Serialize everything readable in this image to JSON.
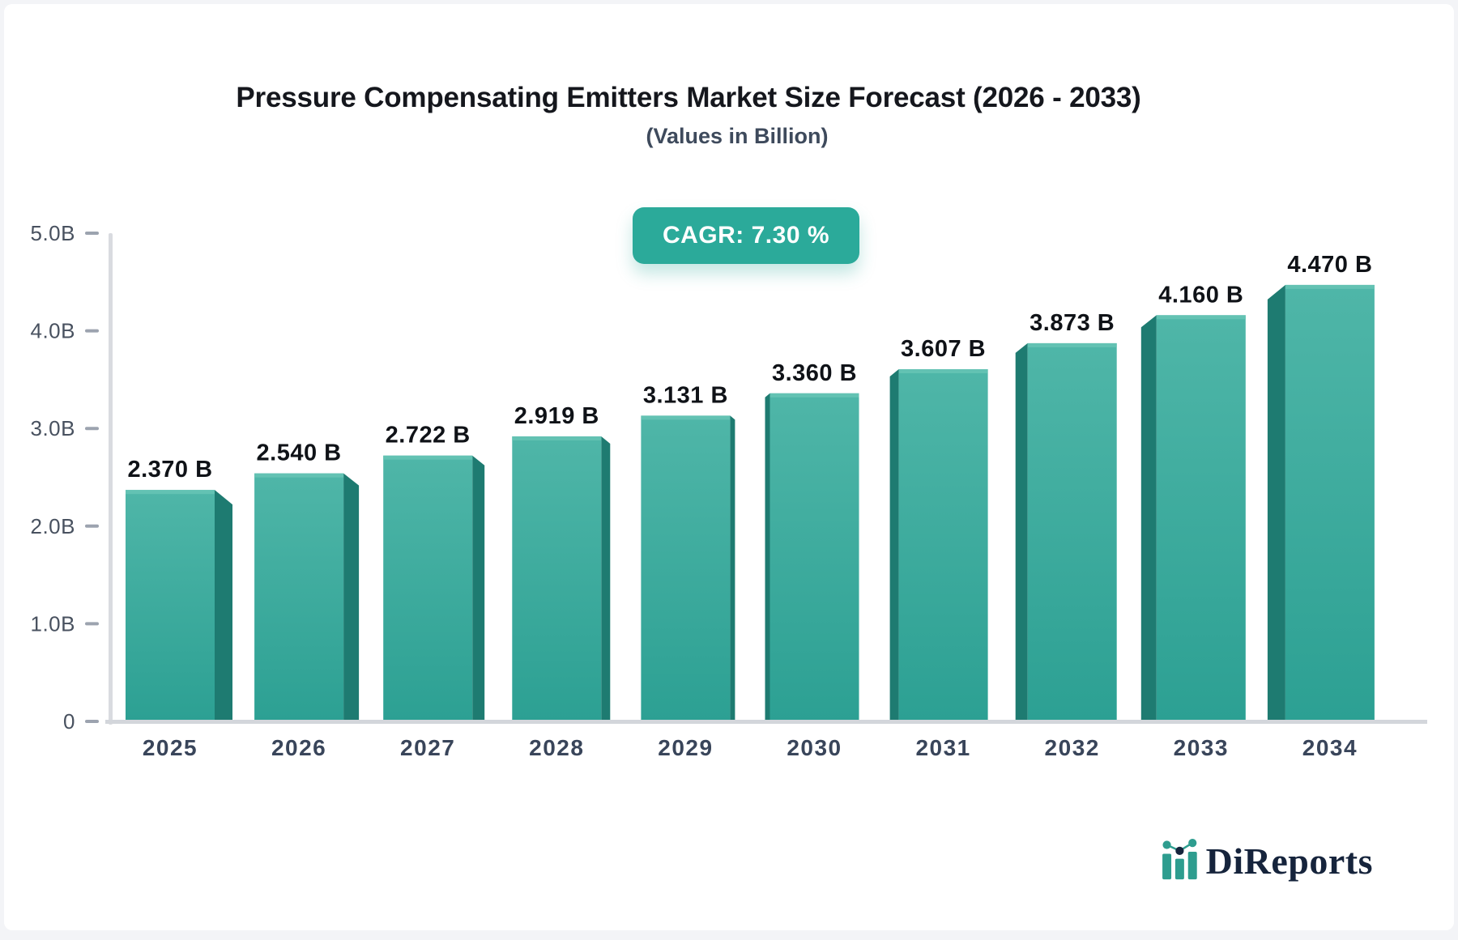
{
  "header": {
    "title": "Pressure Compensating Emitters Market Size Forecast (2026 - 2033)",
    "subtitle": "(Values in Billion)"
  },
  "badge": {
    "label": "CAGR: 7.30 %"
  },
  "chart_data": {
    "type": "bar",
    "title": "Pressure Compensating Emitters Market Size Forecast (2026 - 2033)",
    "subtitle": "(Values in Billion)",
    "unit": "Billion",
    "categories": [
      "2025",
      "2026",
      "2027",
      "2028",
      "2029",
      "2030",
      "2031",
      "2032",
      "2033",
      "2034"
    ],
    "values": [
      2.37,
      2.54,
      2.722,
      2.919,
      3.131,
      3.36,
      3.607,
      3.873,
      4.16,
      4.47
    ],
    "value_labels": [
      "2.370 B",
      "2.540 B",
      "2.722 B",
      "2.919 B",
      "3.131 B",
      "3.360 B",
      "3.607 B",
      "3.873 B",
      "4.160 B",
      "4.470 B"
    ],
    "ylim": [
      0,
      5
    ],
    "yticks": [
      "0",
      "1.0B",
      "2.0B",
      "3.0B",
      "4.0B",
      "5.0B"
    ],
    "grid": false,
    "legend": "none",
    "cagr": "7.30 %",
    "colors": {
      "bar_face_top": "#4fb6a8",
      "bar_face_bottom": "#2ca093",
      "bar_side": "#1e7b71",
      "bar_top_strip": "#63c2b3",
      "axis_line": "#d9dbe0",
      "baseline": "#d3d6db",
      "tick_dash": "#9ca3af",
      "tick_text": "#48515f",
      "year_text": "#39455a",
      "value_text": "#0f1217",
      "badge_bg": "#2baa9a",
      "badge_text": "#ffffff"
    }
  },
  "logo": {
    "text": "DiReports",
    "icon": "bar-chart-with-trend-dots-icon",
    "teal": "#2e9d8f",
    "navy": "#16243c"
  }
}
